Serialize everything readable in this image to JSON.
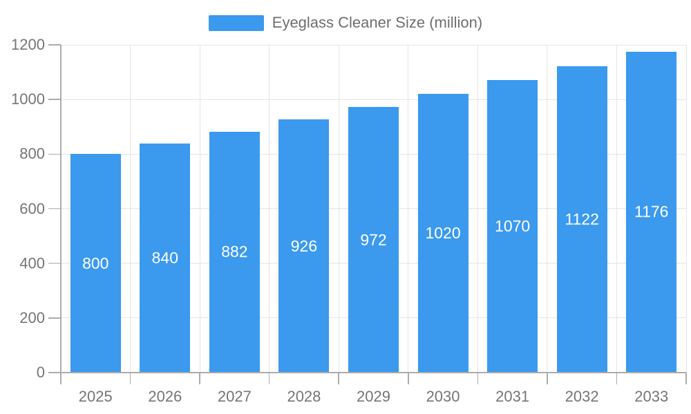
{
  "chart_data": {
    "type": "bar",
    "series_name": "Eyeglass Cleaner Size (million)",
    "categories": [
      "2025",
      "2026",
      "2027",
      "2028",
      "2029",
      "2030",
      "2031",
      "2032",
      "2033"
    ],
    "values": [
      800,
      840,
      882,
      926,
      972,
      1020,
      1070,
      1122,
      1176
    ],
    "title": "",
    "xlabel": "",
    "ylabel": "",
    "ylim": [
      0,
      1200
    ],
    "y_ticks": [
      0,
      200,
      400,
      600,
      800,
      1000,
      1200
    ],
    "grid": true,
    "legend_position": "top",
    "bar_value_labels_shown": true,
    "colors": {
      "bar": "#3B99EE",
      "bar_label": "#FFFFFF",
      "axis_label": "#757575",
      "legend_text": "#6E6E6E",
      "grid_line": "#E4E4E4",
      "axis_line": "#ABABAB",
      "background": "#FFFFFF"
    }
  }
}
